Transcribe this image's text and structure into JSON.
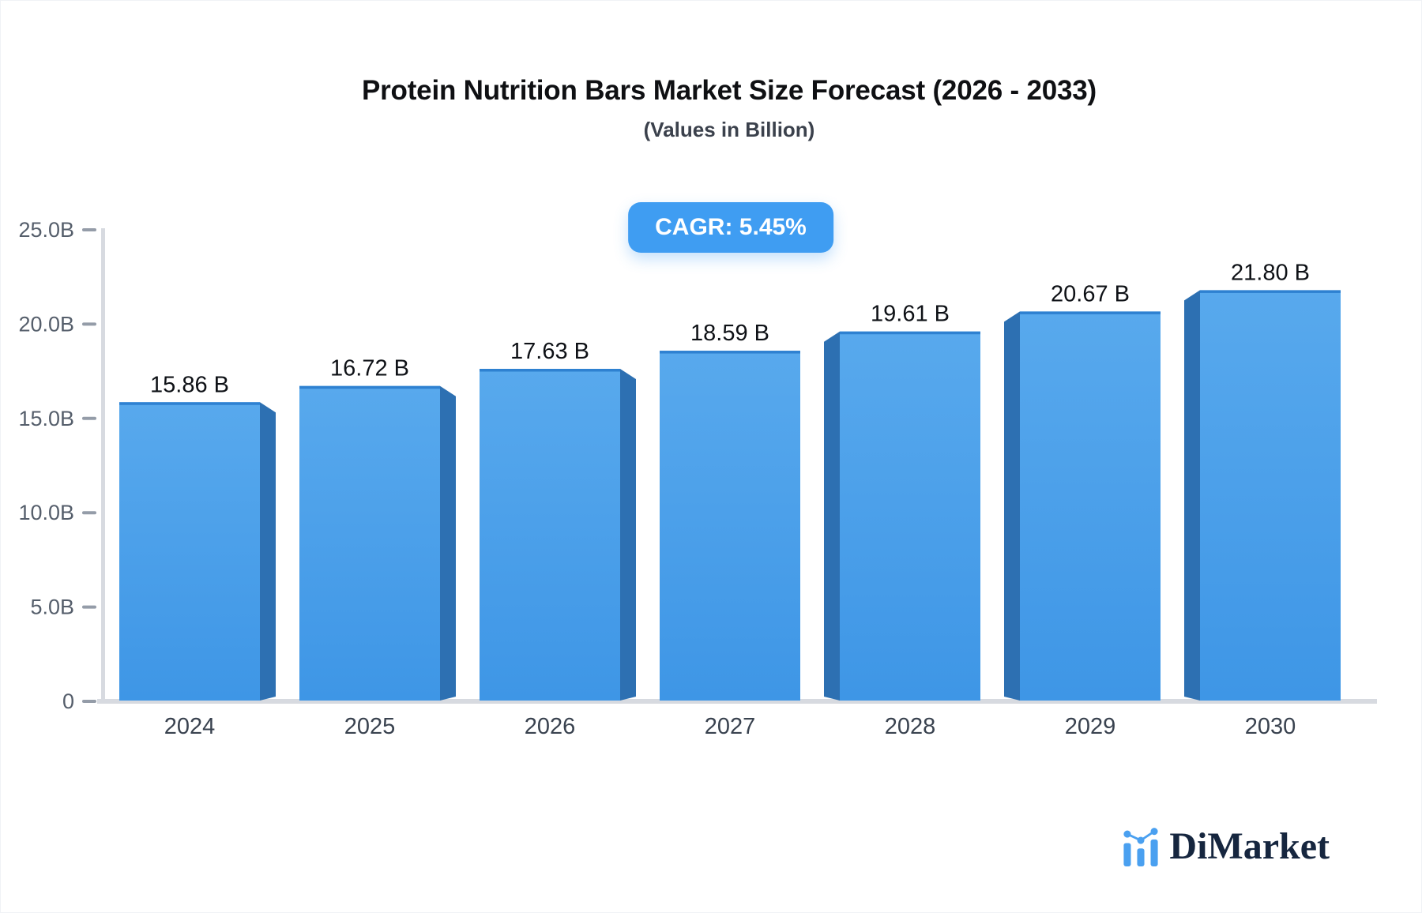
{
  "header": {
    "title": "Protein Nutrition Bars Market Size Forecast (2026 - 2033)",
    "subtitle": "(Values in Billion)",
    "cagr_badge": "CAGR: 5.45%"
  },
  "chart_data": {
    "type": "bar",
    "title": "Protein Nutrition Bars Market Size Forecast (2026 - 2033)",
    "subtitle": "(Values in Billion)",
    "annotation": "CAGR: 5.45%",
    "categories": [
      "2024",
      "2025",
      "2026",
      "2027",
      "2028",
      "2029",
      "2030"
    ],
    "values": [
      15.86,
      16.72,
      17.63,
      18.59,
      19.61,
      20.67,
      21.8
    ],
    "value_labels": [
      "15.86 B",
      "16.72 B",
      "17.63 B",
      "18.59 B",
      "19.61 B",
      "20.67 B",
      "21.80 B"
    ],
    "yticks": [
      {
        "value": 25,
        "label": "25.0B"
      },
      {
        "value": 20,
        "label": "20.0B"
      },
      {
        "value": 15,
        "label": "15.0B"
      },
      {
        "value": 10,
        "label": "10.0B"
      },
      {
        "value": 5,
        "label": "5.0B"
      },
      {
        "value": 0,
        "label": "0"
      }
    ],
    "ylim": [
      0,
      25
    ],
    "grid": false,
    "legend": false,
    "xlabel": "",
    "ylabel": ""
  },
  "branding": {
    "name": "DiMarket"
  },
  "colors": {
    "bar_face_top": "#58a9ed",
    "bar_face_bottom": "#3e96e6",
    "bar_top_lid": "#2e81d1",
    "bar_side": "#2d70b2",
    "badge_bg": "#3f9df2",
    "axis_line": "#d7dae0",
    "tick_dash": "#949ca8",
    "ytick_text": "#555e6b",
    "xtick_text": "#39424f",
    "value_text": "#0e1116",
    "logo_blue": "#4aa0f0",
    "logo_navy": "#16263f"
  }
}
